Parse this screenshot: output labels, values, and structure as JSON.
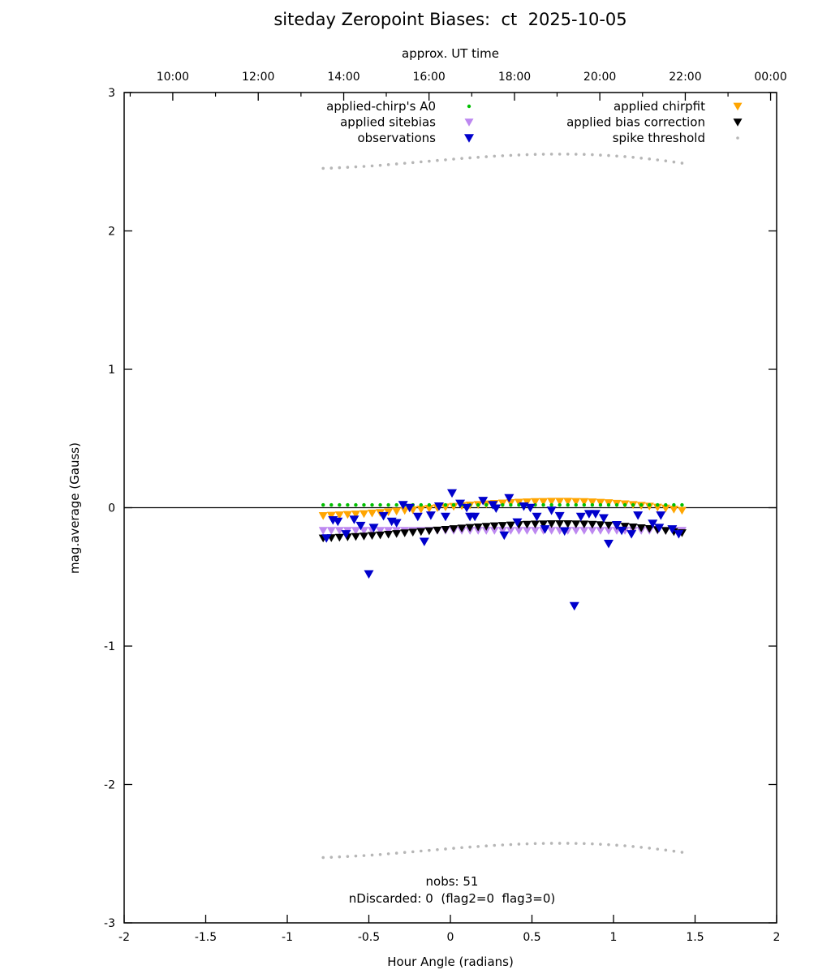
{
  "title": "siteday Zeropoint Biases:  ct  2025-10-05",
  "chart_data": {
    "type": "scatter",
    "title": "siteday Zeropoint Biases:  ct  2025-10-05",
    "x2label": "approx. UT time",
    "xlabel": "Hour Angle (radians)",
    "ylabel": "mag.average (Gauss)",
    "xlim": [
      -2,
      2
    ],
    "ylim": [
      -3,
      3
    ],
    "grid": false,
    "zero_line": true,
    "x_ticks": {
      "values": [
        -2,
        -1.5,
        -1,
        -0.5,
        0,
        0.5,
        1,
        1.5,
        2
      ],
      "labels": [
        "-2",
        "-1.5",
        "-1",
        "-0.5",
        "0",
        "0.5",
        "1",
        "1.5",
        "2"
      ]
    },
    "y_ticks": {
      "values": [
        3,
        2,
        1,
        0,
        -1,
        -2,
        -3
      ],
      "labels": [
        "3",
        "2",
        "1",
        "0",
        "-1",
        "-2",
        "-3"
      ]
    },
    "x2_ticks": {
      "major": [
        {
          "label": "10:00",
          "v": -1.702
        },
        {
          "label": "12:00",
          "v": -1.178
        },
        {
          "label": "14:00",
          "v": -0.654
        },
        {
          "label": "16:00",
          "v": -0.131
        },
        {
          "label": "18:00",
          "v": 0.393
        },
        {
          "label": "20:00",
          "v": 0.916
        },
        {
          "label": "22:00",
          "v": 1.44
        },
        {
          "label": "00:00",
          "v": 1.963
        }
      ],
      "minor": [
        -1.963,
        -1.44,
        -0.916,
        -0.393,
        0.131,
        0.654,
        1.178,
        1.702
      ]
    },
    "nobs_label": "nobs: 51",
    "ndiscarded_label": "nDiscarded: 0  (flag2=0  flag3=0)",
    "x_dense": [
      -0.78,
      -0.73,
      -0.68,
      -0.63,
      -0.58,
      -0.53,
      -0.48,
      -0.43,
      -0.38,
      -0.33,
      -0.28,
      -0.23,
      -0.18,
      -0.13,
      -0.08,
      -0.03,
      0.02,
      0.07,
      0.12,
      0.17,
      0.22,
      0.27,
      0.32,
      0.37,
      0.42,
      0.47,
      0.52,
      0.57,
      0.62,
      0.67,
      0.72,
      0.77,
      0.82,
      0.87,
      0.92,
      0.97,
      1.02,
      1.07,
      1.12,
      1.17,
      1.22,
      1.27,
      1.32,
      1.37,
      1.42
    ],
    "series": [
      {
        "key": "spike_threshold_upper",
        "name": "spike threshold",
        "marker": "dot",
        "size": 1.8,
        "color": "#b6b6b6",
        "x": "dense",
        "y": [
          2.452,
          2.454,
          2.457,
          2.46,
          2.463,
          2.466,
          2.47,
          2.474,
          2.479,
          2.484,
          2.489,
          2.494,
          2.499,
          2.504,
          2.509,
          2.514,
          2.519,
          2.524,
          2.528,
          2.532,
          2.536,
          2.54,
          2.543,
          2.546,
          2.549,
          2.551,
          2.553,
          2.554,
          2.555,
          2.555,
          2.555,
          2.554,
          2.553,
          2.551,
          2.548,
          2.545,
          2.541,
          2.537,
          2.532,
          2.526,
          2.52,
          2.513,
          2.506,
          2.498,
          2.49
        ]
      },
      {
        "key": "spike_threshold_lower",
        "name": "spike threshold",
        "marker": "dot",
        "size": 1.8,
        "color": "#b6b6b6",
        "x": "dense",
        "y": [
          -2.528,
          -2.526,
          -2.523,
          -2.52,
          -2.517,
          -2.514,
          -2.51,
          -2.506,
          -2.501,
          -2.496,
          -2.491,
          -2.486,
          -2.481,
          -2.476,
          -2.471,
          -2.466,
          -2.461,
          -2.456,
          -2.452,
          -2.448,
          -2.444,
          -2.44,
          -2.437,
          -2.434,
          -2.431,
          -2.429,
          -2.427,
          -2.426,
          -2.425,
          -2.425,
          -2.425,
          -2.426,
          -2.427,
          -2.429,
          -2.432,
          -2.435,
          -2.439,
          -2.443,
          -2.448,
          -2.454,
          -2.46,
          -2.467,
          -2.474,
          -2.482,
          -2.49
        ]
      },
      {
        "key": "applied_chirpfit",
        "name": "applied chirpfit",
        "marker": "triangle-down",
        "size": 5.5,
        "color": "#ffa500",
        "x": "dense",
        "y": [
          -0.058,
          -0.056,
          -0.053,
          -0.05,
          -0.047,
          -0.044,
          -0.04,
          -0.036,
          -0.031,
          -0.026,
          -0.021,
          -0.016,
          -0.011,
          -0.006,
          -0.001,
          0.004,
          0.009,
          0.014,
          0.018,
          0.022,
          0.026,
          0.03,
          0.033,
          0.036,
          0.039,
          0.041,
          0.043,
          0.044,
          0.045,
          0.045,
          0.045,
          0.044,
          0.043,
          0.041,
          0.038,
          0.035,
          0.031,
          0.027,
          0.022,
          0.016,
          0.01,
          0.003,
          -0.004,
          -0.012,
          -0.02
        ]
      },
      {
        "key": "applied_chirps_a0",
        "name": "applied-chirp's A0",
        "marker": "dot",
        "size": 2.2,
        "color": "#00bf00",
        "x": "dense",
        "y_const": 0.02
      },
      {
        "key": "applied_sitebias",
        "name": "applied sitebias",
        "marker": "triangle-down",
        "size": 5.5,
        "color": "#bd88f0",
        "x": "dense",
        "y_const": -0.165
      },
      {
        "key": "applied_bias_correction",
        "name": "applied bias correction",
        "marker": "triangle-down",
        "size": 5.5,
        "color": "#000000",
        "x": "dense",
        "y": [
          -0.22,
          -0.218,
          -0.215,
          -0.212,
          -0.209,
          -0.206,
          -0.202,
          -0.198,
          -0.193,
          -0.188,
          -0.183,
          -0.178,
          -0.173,
          -0.168,
          -0.163,
          -0.158,
          -0.153,
          -0.148,
          -0.144,
          -0.14,
          -0.136,
          -0.132,
          -0.129,
          -0.126,
          -0.123,
          -0.121,
          -0.119,
          -0.118,
          -0.117,
          -0.117,
          -0.117,
          -0.118,
          -0.119,
          -0.121,
          -0.124,
          -0.127,
          -0.131,
          -0.135,
          -0.14,
          -0.146,
          -0.152,
          -0.159,
          -0.166,
          -0.174,
          -0.182
        ]
      },
      {
        "key": "observations",
        "name": "observations",
        "marker": "triangle-down",
        "size": 6,
        "color": "#0000cc",
        "x": [
          -0.76,
          -0.72,
          -0.69,
          -0.64,
          -0.59,
          -0.55,
          -0.5,
          -0.47,
          -0.41,
          -0.36,
          -0.33,
          -0.29,
          -0.25,
          -0.2,
          -0.16,
          -0.12,
          -0.07,
          -0.03,
          0.01,
          0.06,
          0.1,
          0.12,
          0.15,
          0.2,
          0.26,
          0.28,
          0.33,
          0.36,
          0.41,
          0.45,
          0.49,
          0.53,
          0.58,
          0.62,
          0.67,
          0.7,
          0.76,
          0.8,
          0.85,
          0.89,
          0.94,
          0.97,
          1.02,
          1.05,
          1.11,
          1.15,
          1.24,
          1.28,
          1.29,
          1.36,
          1.4
        ],
        "y": [
          -0.22,
          -0.09,
          -0.1,
          -0.19,
          -0.085,
          -0.13,
          -0.48,
          -0.145,
          -0.06,
          -0.1,
          -0.11,
          0.02,
          0.0,
          -0.065,
          -0.245,
          -0.055,
          0.01,
          -0.065,
          0.105,
          0.03,
          0.0,
          -0.065,
          -0.065,
          0.05,
          0.02,
          -0.005,
          -0.2,
          0.07,
          -0.105,
          0.01,
          0.0,
          -0.065,
          -0.155,
          -0.02,
          -0.06,
          -0.17,
          -0.71,
          -0.065,
          -0.045,
          -0.045,
          -0.075,
          -0.26,
          -0.125,
          -0.165,
          -0.19,
          -0.055,
          -0.115,
          -0.145,
          -0.055,
          -0.155,
          -0.19
        ]
      }
    ],
    "legend": {
      "position": "top-inside",
      "items": [
        {
          "label": "applied-chirp's A0",
          "series": "applied_chirps_a0",
          "col": 0,
          "row": 0
        },
        {
          "label": "applied chirpfit",
          "series": "applied_chirpfit",
          "col": 1,
          "row": 0
        },
        {
          "label": "applied sitebias",
          "series": "applied_sitebias",
          "col": 0,
          "row": 1
        },
        {
          "label": "applied bias correction",
          "series": "applied_bias_correction",
          "col": 1,
          "row": 1
        },
        {
          "label": "observations",
          "series": "observations",
          "col": 0,
          "row": 2
        },
        {
          "label": "spike threshold",
          "series": "spike_threshold_upper",
          "col": 1,
          "row": 2
        }
      ]
    }
  }
}
